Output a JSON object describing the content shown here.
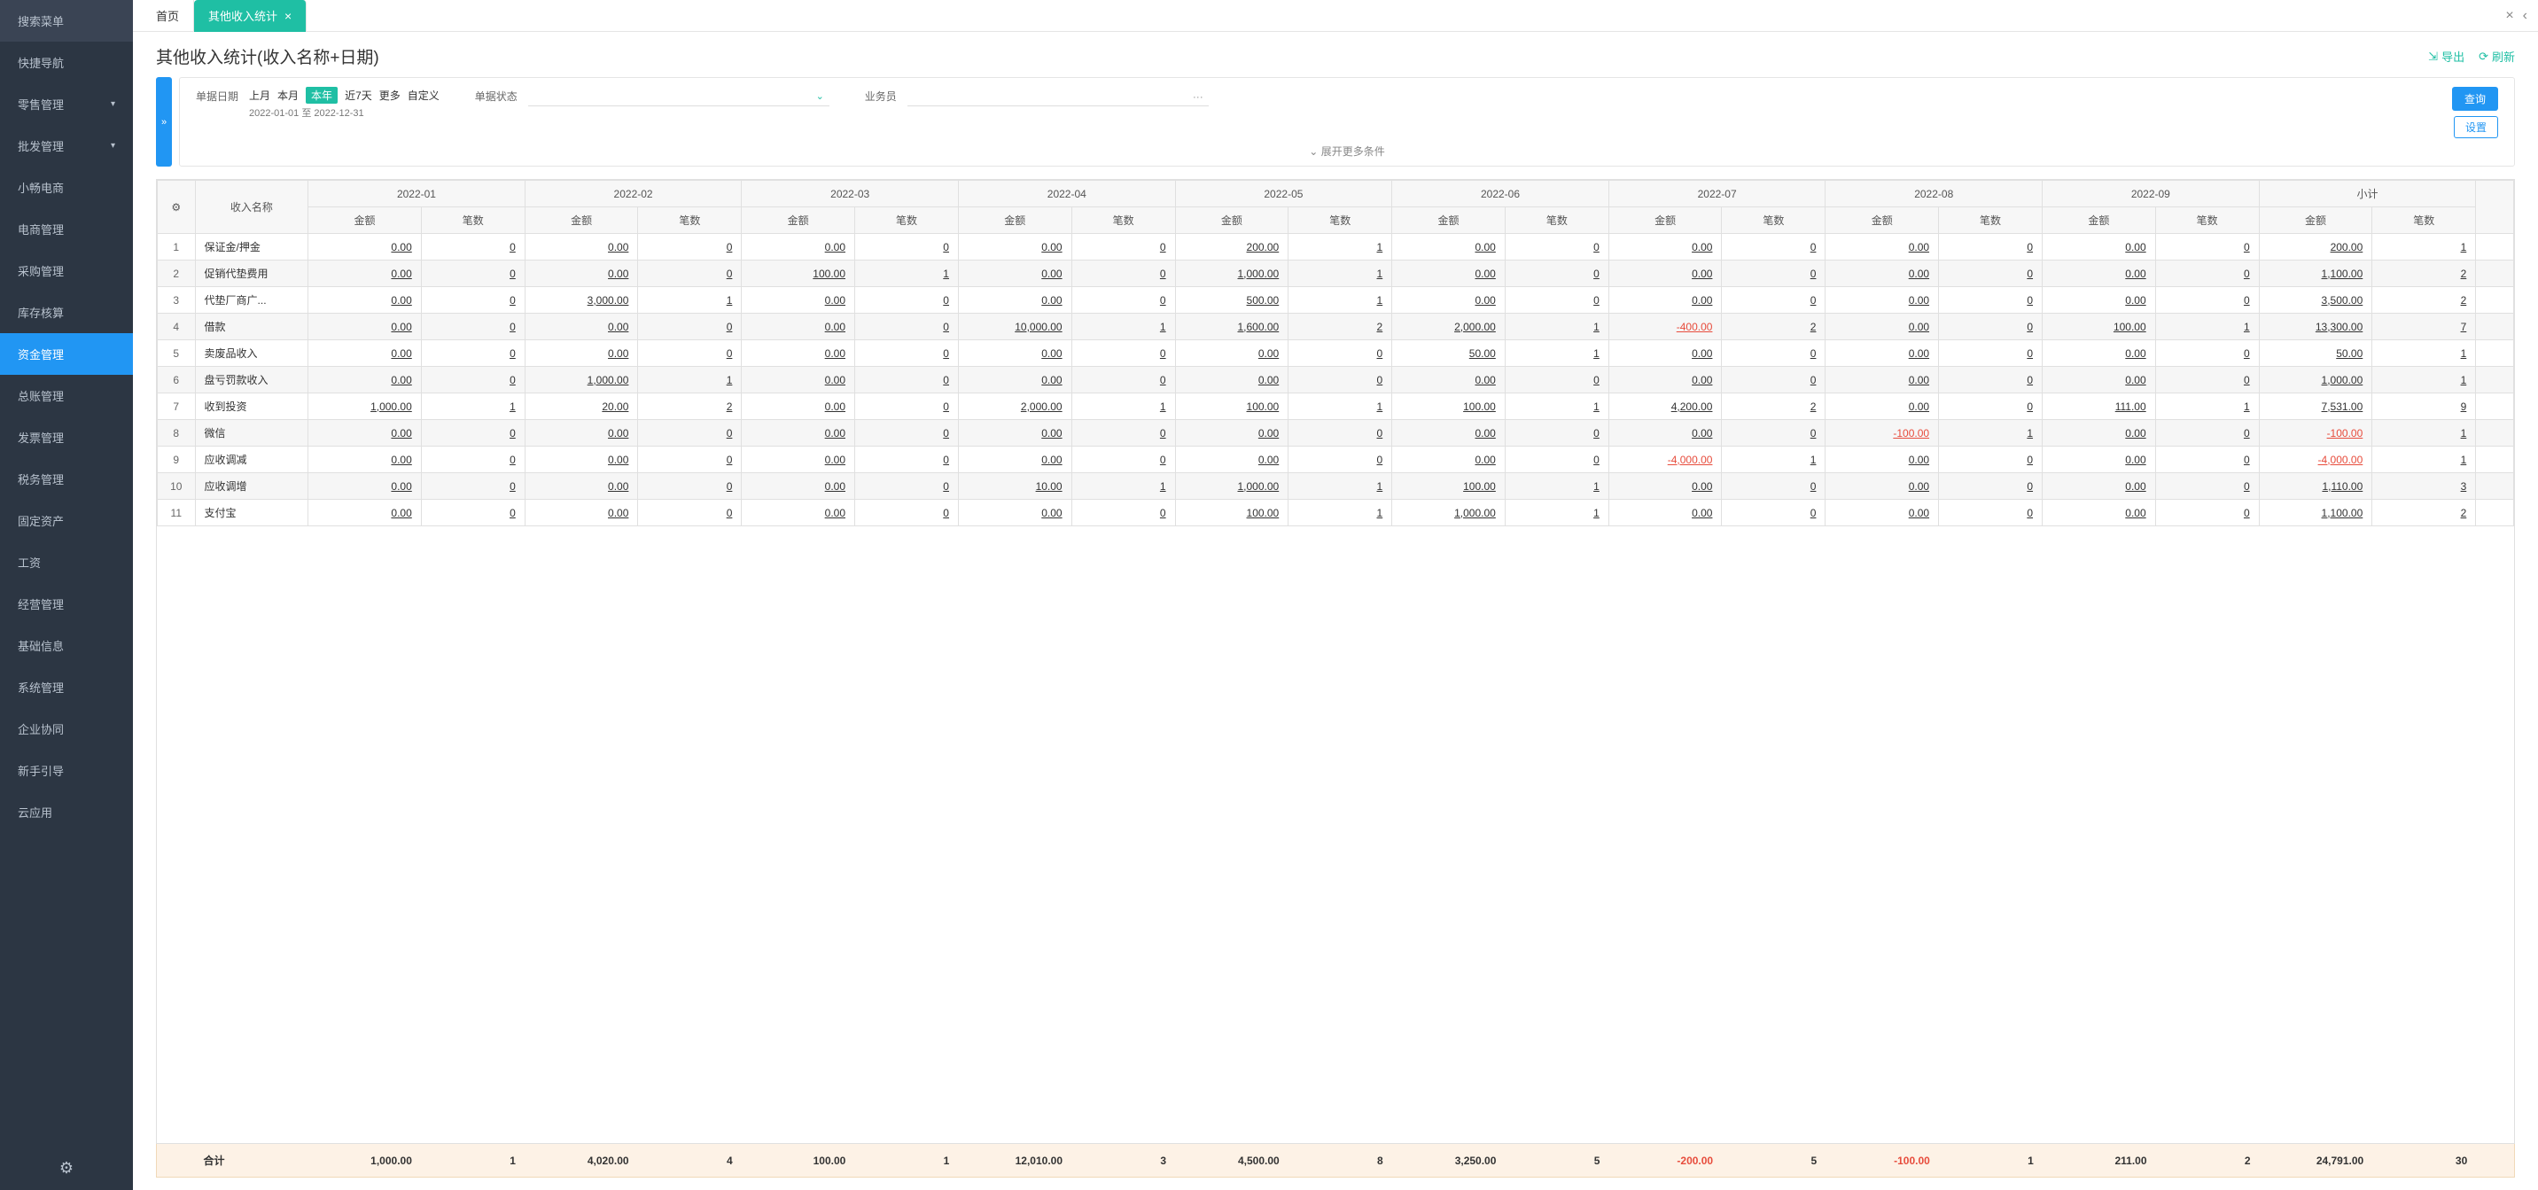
{
  "sidebar": {
    "items": [
      {
        "label": "搜索菜单",
        "caret": false
      },
      {
        "label": "快捷导航",
        "caret": false
      },
      {
        "label": "零售管理",
        "caret": true
      },
      {
        "label": "批发管理",
        "caret": true
      },
      {
        "label": "小畅电商",
        "caret": false
      },
      {
        "label": "电商管理",
        "caret": false
      },
      {
        "label": "采购管理",
        "caret": false
      },
      {
        "label": "库存核算",
        "caret": false
      },
      {
        "label": "资金管理",
        "caret": false,
        "active": true
      },
      {
        "label": "总账管理",
        "caret": false
      },
      {
        "label": "发票管理",
        "caret": false
      },
      {
        "label": "税务管理",
        "caret": false
      },
      {
        "label": "固定资产",
        "caret": false
      },
      {
        "label": "工资",
        "caret": false
      },
      {
        "label": "经营管理",
        "caret": false
      },
      {
        "label": "基础信息",
        "caret": false
      },
      {
        "label": "系统管理",
        "caret": false
      },
      {
        "label": "企业协同",
        "caret": false
      },
      {
        "label": "新手引导",
        "caret": false
      },
      {
        "label": "云应用",
        "caret": false
      }
    ]
  },
  "tabs": {
    "home": "首页",
    "current": "其他收入统计",
    "close": "×"
  },
  "page": {
    "title": "其他收入统计(收入名称+日期)",
    "export": "导出",
    "refresh": "刷新"
  },
  "filter": {
    "date_label": "单据日期",
    "opts": [
      "上月",
      "本月",
      "本年",
      "近7天",
      "更多",
      "自定义"
    ],
    "active_opt": 2,
    "date_range": "2022-01-01 至 2022-12-31",
    "status_label": "单据状态",
    "status_caret": "⌄",
    "staff_label": "业务员",
    "ellipsis": "···",
    "query_btn": "查询",
    "settings_btn": "设置",
    "expand": "展开更多条件",
    "expand_caret": "⌄"
  },
  "table": {
    "gear": "⚙",
    "name_header": "收入名称",
    "months": [
      "2022-01",
      "2022-02",
      "2022-03",
      "2022-04",
      "2022-05",
      "2022-06",
      "2022-07",
      "2022-08",
      "2022-09"
    ],
    "subtotal": "小计",
    "amount": "金额",
    "count": "笔数",
    "rows": [
      {
        "name": "保证金/押金",
        "vals": [
          [
            0,
            0
          ],
          [
            0,
            0
          ],
          [
            0,
            0
          ],
          [
            0,
            0
          ],
          [
            200,
            1
          ],
          [
            0,
            0
          ],
          [
            0,
            0
          ],
          [
            0,
            0
          ],
          [
            0,
            0
          ]
        ],
        "sub": [
          200,
          1
        ]
      },
      {
        "name": "促销代垫费用",
        "vals": [
          [
            0,
            0
          ],
          [
            0,
            0
          ],
          [
            100,
            1
          ],
          [
            0,
            0
          ],
          [
            1000,
            1
          ],
          [
            0,
            0
          ],
          [
            0,
            0
          ],
          [
            0,
            0
          ],
          [
            0,
            0
          ]
        ],
        "sub": [
          1100,
          2
        ]
      },
      {
        "name": "代垫厂商广...",
        "vals": [
          [
            0,
            0
          ],
          [
            3000,
            1
          ],
          [
            0,
            0
          ],
          [
            0,
            0
          ],
          [
            500,
            1
          ],
          [
            0,
            0
          ],
          [
            0,
            0
          ],
          [
            0,
            0
          ],
          [
            0,
            0
          ]
        ],
        "sub": [
          3500,
          2
        ]
      },
      {
        "name": "借款",
        "vals": [
          [
            0,
            0
          ],
          [
            0,
            0
          ],
          [
            0,
            0
          ],
          [
            10000,
            1
          ],
          [
            1600,
            2
          ],
          [
            2000,
            1
          ],
          [
            -400,
            2
          ],
          [
            0,
            0
          ],
          [
            100,
            1
          ]
        ],
        "sub": [
          13300,
          7
        ]
      },
      {
        "name": "卖废品收入",
        "vals": [
          [
            0,
            0
          ],
          [
            0,
            0
          ],
          [
            0,
            0
          ],
          [
            0,
            0
          ],
          [
            0,
            0
          ],
          [
            50,
            1
          ],
          [
            0,
            0
          ],
          [
            0,
            0
          ],
          [
            0,
            0
          ]
        ],
        "sub": [
          50,
          1
        ]
      },
      {
        "name": "盘亏罚款收入",
        "vals": [
          [
            0,
            0
          ],
          [
            1000,
            1
          ],
          [
            0,
            0
          ],
          [
            0,
            0
          ],
          [
            0,
            0
          ],
          [
            0,
            0
          ],
          [
            0,
            0
          ],
          [
            0,
            0
          ],
          [
            0,
            0
          ]
        ],
        "sub": [
          1000,
          1
        ]
      },
      {
        "name": "收到投资",
        "vals": [
          [
            1000,
            1
          ],
          [
            20,
            2
          ],
          [
            0,
            0
          ],
          [
            2000,
            1
          ],
          [
            100,
            1
          ],
          [
            100,
            1
          ],
          [
            4200,
            2
          ],
          [
            0,
            0
          ],
          [
            111,
            1
          ]
        ],
        "sub": [
          7531,
          9
        ]
      },
      {
        "name": "微信",
        "vals": [
          [
            0,
            0
          ],
          [
            0,
            0
          ],
          [
            0,
            0
          ],
          [
            0,
            0
          ],
          [
            0,
            0
          ],
          [
            0,
            0
          ],
          [
            0,
            0
          ],
          [
            -100,
            1
          ],
          [
            0,
            0
          ]
        ],
        "sub": [
          -100,
          1
        ]
      },
      {
        "name": "应收调减",
        "vals": [
          [
            0,
            0
          ],
          [
            0,
            0
          ],
          [
            0,
            0
          ],
          [
            0,
            0
          ],
          [
            0,
            0
          ],
          [
            0,
            0
          ],
          [
            -4000,
            1
          ],
          [
            0,
            0
          ],
          [
            0,
            0
          ]
        ],
        "sub": [
          -4000,
          1
        ]
      },
      {
        "name": "应收调增",
        "vals": [
          [
            0,
            0
          ],
          [
            0,
            0
          ],
          [
            0,
            0
          ],
          [
            10,
            1
          ],
          [
            1000,
            1
          ],
          [
            100,
            1
          ],
          [
            0,
            0
          ],
          [
            0,
            0
          ],
          [
            0,
            0
          ]
        ],
        "sub": [
          1110,
          3
        ]
      },
      {
        "name": "支付宝",
        "vals": [
          [
            0,
            0
          ],
          [
            0,
            0
          ],
          [
            0,
            0
          ],
          [
            0,
            0
          ],
          [
            100,
            1
          ],
          [
            1000,
            1
          ],
          [
            0,
            0
          ],
          [
            0,
            0
          ],
          [
            0,
            0
          ]
        ],
        "sub": [
          1100,
          2
        ]
      }
    ],
    "total_label": "合计",
    "totals": [
      [
        1000,
        1
      ],
      [
        4020,
        4
      ],
      [
        100,
        1
      ],
      [
        12010,
        3
      ],
      [
        4500,
        8
      ],
      [
        3250,
        5
      ],
      [
        -200,
        5
      ],
      [
        -100,
        1
      ],
      [
        211,
        2
      ]
    ],
    "grand": [
      24791,
      30
    ]
  },
  "col_widths": {
    "idx": 40,
    "name": 120,
    "amt": 120,
    "cnt": 110
  }
}
